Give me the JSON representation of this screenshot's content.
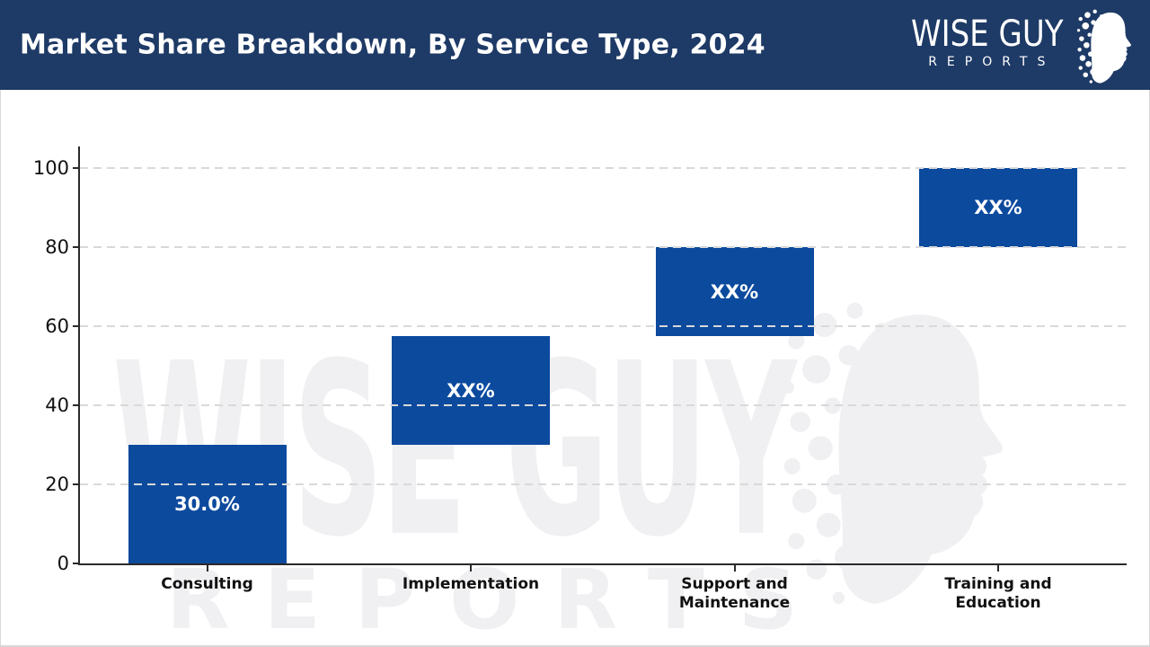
{
  "header": {
    "title": "Market Share Breakdown, By Service Type, 2024",
    "logo": {
      "line1": "WISE GUY",
      "line2": "REPORTS"
    }
  },
  "watermark": {
    "line1": "WISE GUY",
    "line2": "REPORTS"
  },
  "colors": {
    "header_bg": "#1e3a66",
    "bar": "#0c4a9e",
    "grid": "#d9d9d9",
    "axis": "#2a2a2a",
    "tick_label": "#111111",
    "bar_label": "#ffffff",
    "watermark": "#f0f0f2"
  },
  "chart_data": {
    "type": "bar",
    "subtype": "waterfall",
    "title": "Market Share Breakdown, By Service Type, 2024",
    "categories": [
      "Consulting",
      "Implementation",
      "Support and Maintenance",
      "Training and Education"
    ],
    "category_label_lines": [
      [
        "Consulting"
      ],
      [
        "Implementation"
      ],
      [
        "Support and",
        "Maintenance"
      ],
      [
        "Training and",
        "Education"
      ]
    ],
    "segments": [
      {
        "label": "Consulting",
        "start": 0,
        "end": 30,
        "value": 30.0,
        "bar_label": "30.0%"
      },
      {
        "label": "Implementation",
        "start": 30,
        "end": 57.5,
        "value": 27.5,
        "bar_label": "XX%"
      },
      {
        "label": "Support and Maintenance",
        "start": 57.5,
        "end": 80,
        "value": 22.5,
        "bar_label": "XX%"
      },
      {
        "label": "Training and Education",
        "start": 80,
        "end": 100,
        "value": 20.0,
        "bar_label": "XX%"
      }
    ],
    "yticks": [
      0,
      20,
      40,
      60,
      80,
      100
    ],
    "ylim": [
      0,
      105.5
    ],
    "xlabel": "",
    "ylabel": "",
    "grid": "horizontal-dashed",
    "legend": "none",
    "bar_color": "#0c4a9e"
  }
}
